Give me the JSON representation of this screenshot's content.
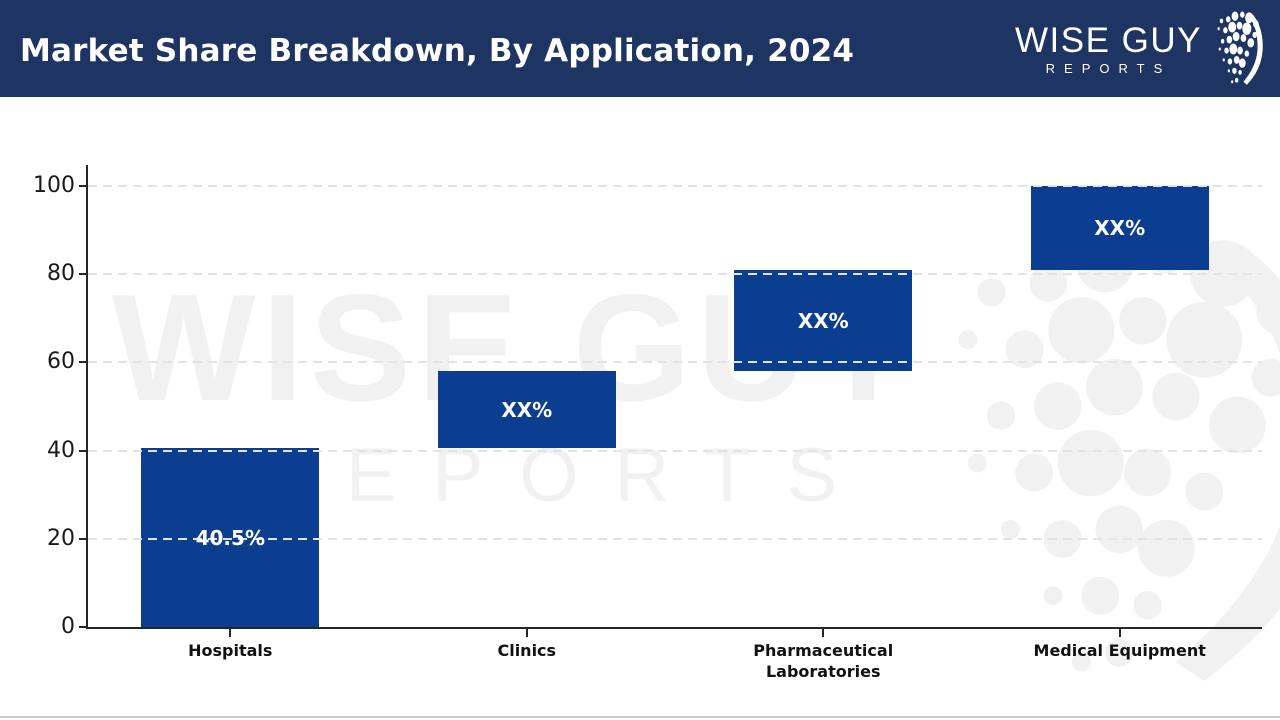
{
  "header": {
    "title": "Market Share Breakdown, By Application, 2024",
    "logo": {
      "brand_line1": "WISE GUY",
      "brand_line2": "REPORTS"
    }
  },
  "watermark": {
    "line1": "WISE GUY",
    "line2": "REPORTS"
  },
  "chart_data": {
    "type": "bar",
    "subtype": "waterfall",
    "title": "Market Share Breakdown, By Application, 2024",
    "categories": [
      "Hospitals",
      "Clinics",
      "Pharmaceutical Laboratories",
      "Medical Equipment"
    ],
    "segments": [
      {
        "category": "Hospitals",
        "start": 0,
        "end": 40.5,
        "label": "40.5%"
      },
      {
        "category": "Clinics",
        "start": 40.5,
        "end": 58,
        "label": "XX%"
      },
      {
        "category": "Pharmaceutical Laboratories",
        "start": 58,
        "end": 81,
        "label": "XX%"
      },
      {
        "category": "Medical Equipment",
        "start": 81,
        "end": 100,
        "label": "XX%"
      }
    ],
    "xlabel": "",
    "ylabel": "",
    "ylim": [
      0,
      104.8
    ],
    "yticks": [
      0,
      20,
      40,
      60,
      80,
      100
    ],
    "grid": true,
    "grid_style": "dashed horizontal",
    "legend": false,
    "colors": {
      "bar": "#0b3e91",
      "bar_label": "#ffffff",
      "axis": "#262626",
      "grid": "#e3e3e3",
      "header_bg": "#1e3564",
      "header_text": "#ffffff",
      "watermark": "#f1f1f1"
    }
  }
}
